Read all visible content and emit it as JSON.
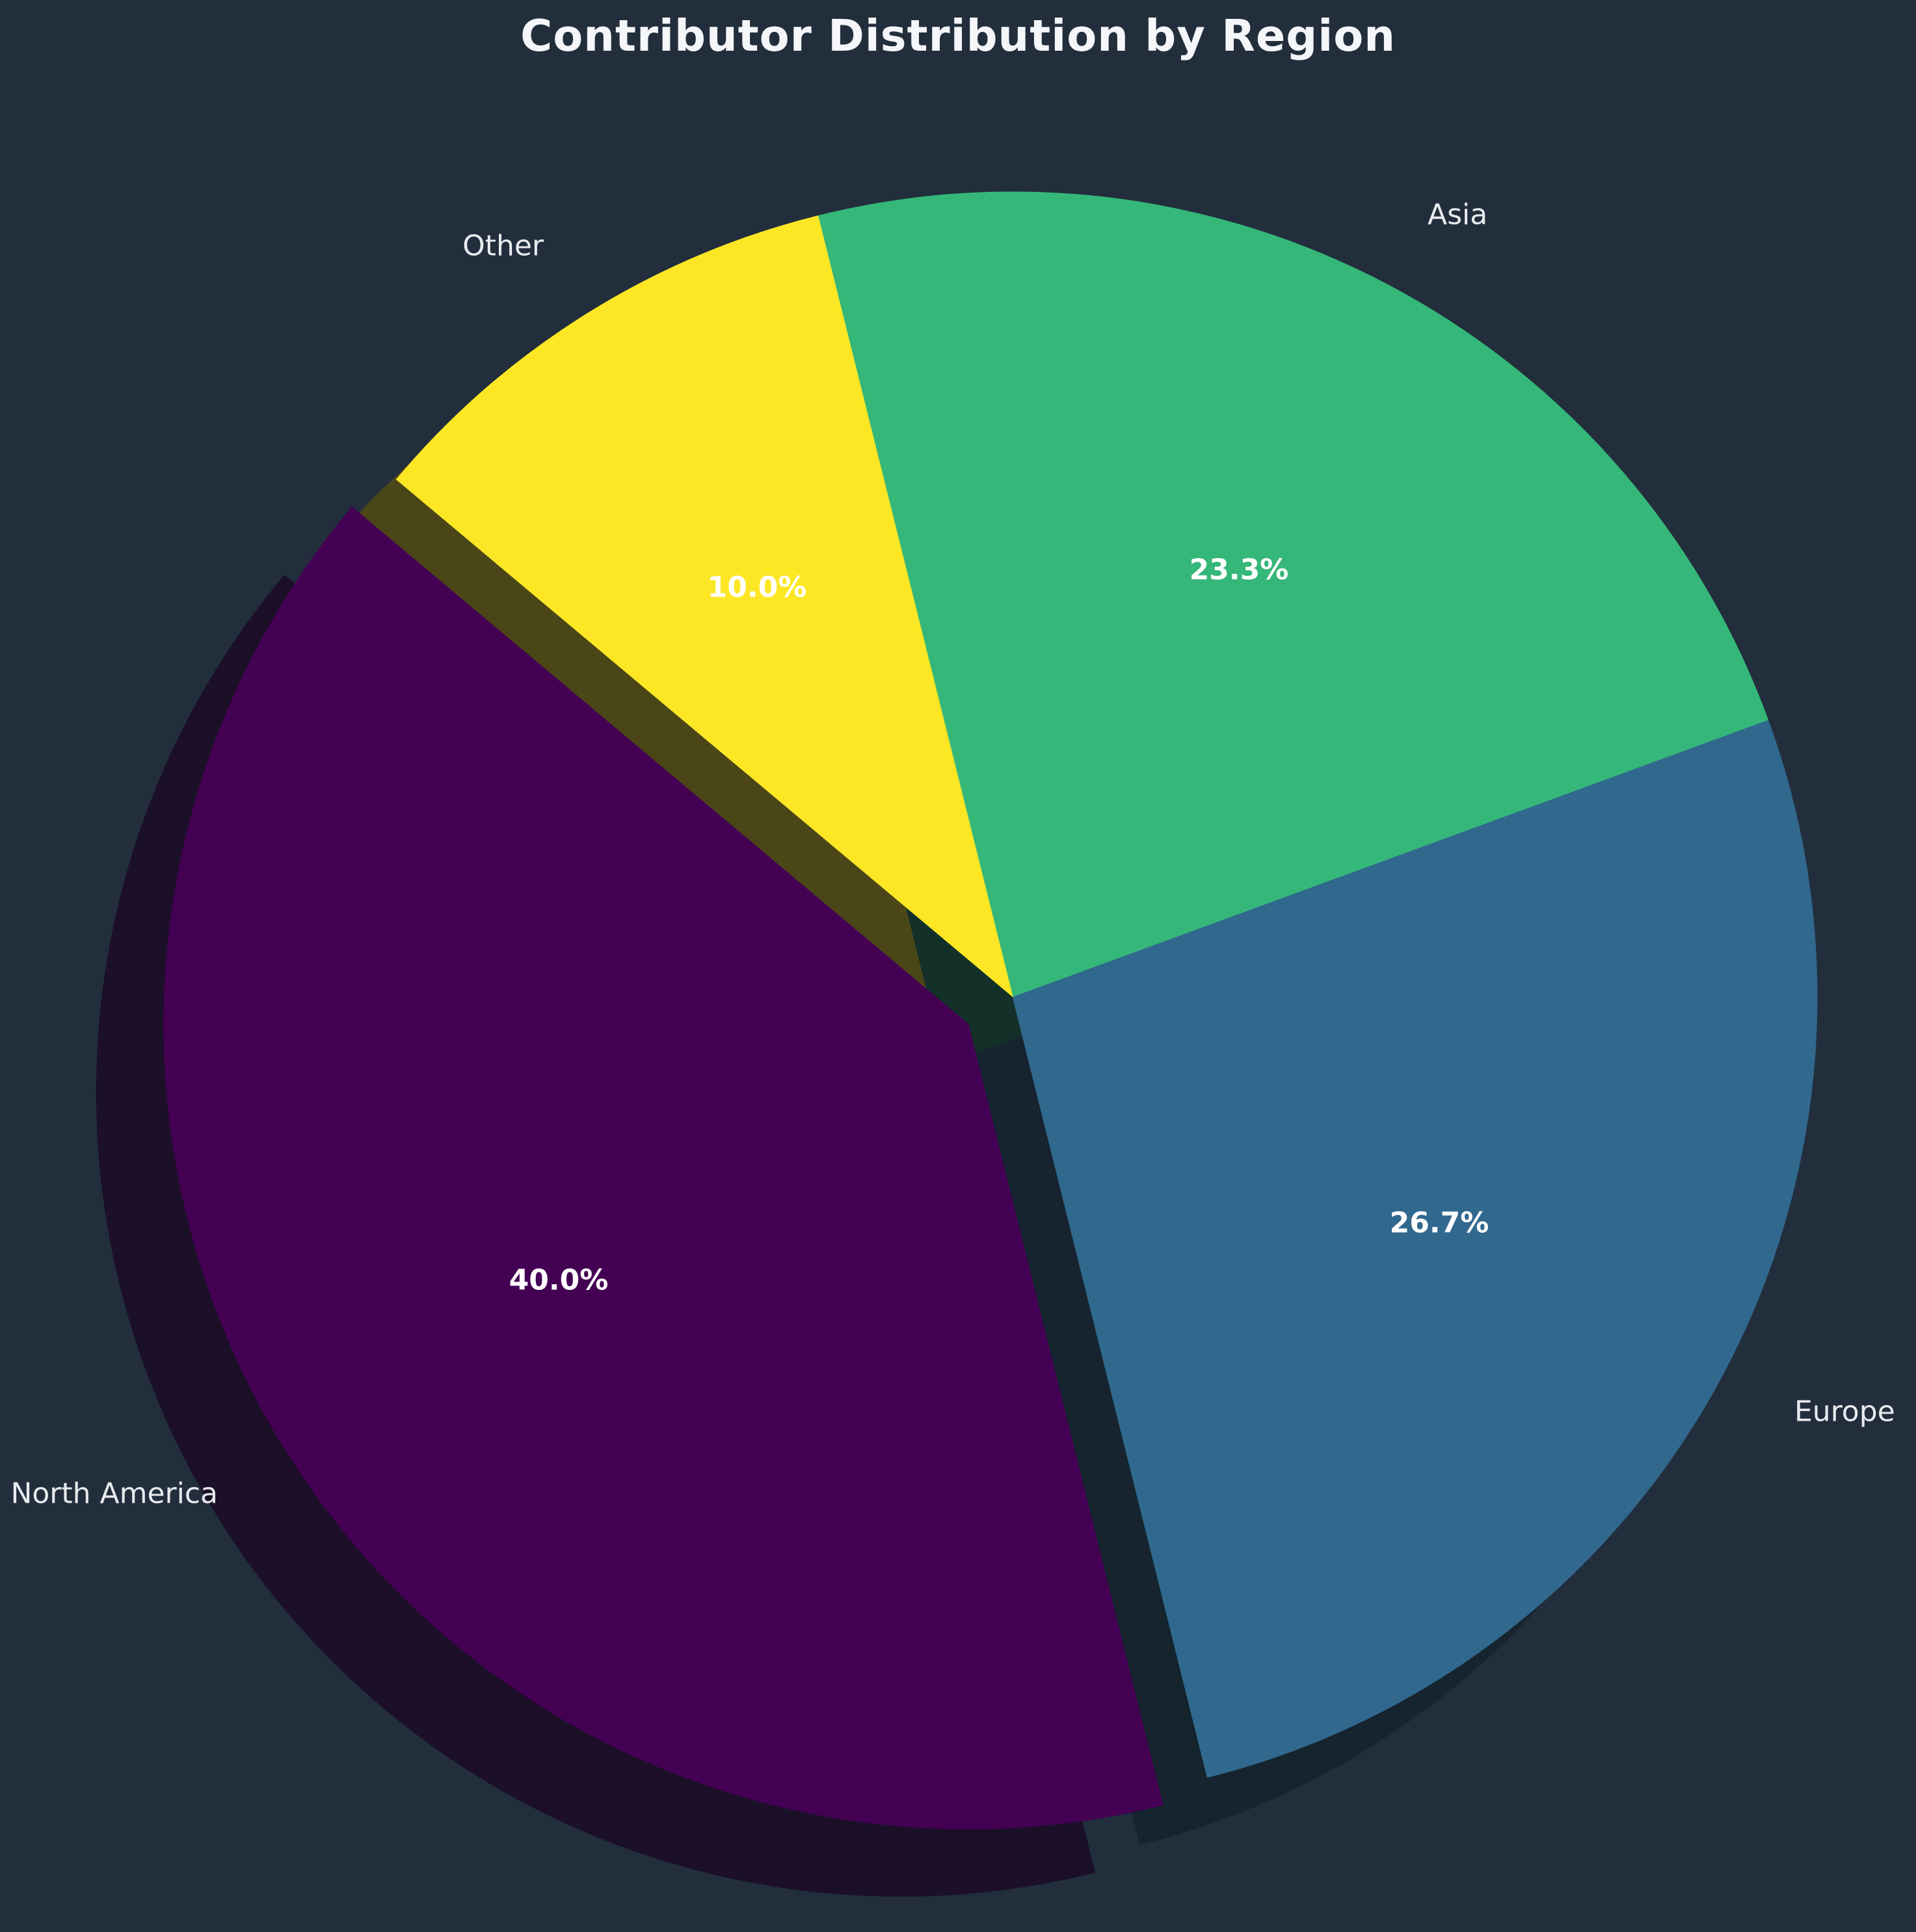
{
  "title": "Contributor Distribution by Region",
  "chart_data": {
    "type": "pie",
    "title": "Contributor Distribution by Region",
    "slices": [
      {
        "label": "North America",
        "pct": 40.0,
        "pct_label": "40.0%",
        "color": "#440154",
        "shadow_color": "#1b1027",
        "explode": 0.065
      },
      {
        "label": "Europe",
        "pct": 26.7,
        "pct_label": "26.7%",
        "color": "#31688e",
        "shadow_color": "#15242f",
        "explode": 0
      },
      {
        "label": "Asia",
        "pct": 23.3,
        "pct_label": "23.3%",
        "color": "#35b779",
        "shadow_color": "#133029",
        "explode": 0
      },
      {
        "label": "Other",
        "pct": 10.0,
        "pct_label": "10.0%",
        "color": "#fde725",
        "shadow_color": "#4a4617",
        "explode": 0
      }
    ],
    "startangle": 140,
    "counterclock": true,
    "shadow": true,
    "labeldistance": 1.1,
    "pctdistance": 0.6,
    "background_color": "#222e3c",
    "title_color": "#f4f6f9",
    "label_color": "#e8ebef",
    "pct_color": "#ffffff"
  }
}
